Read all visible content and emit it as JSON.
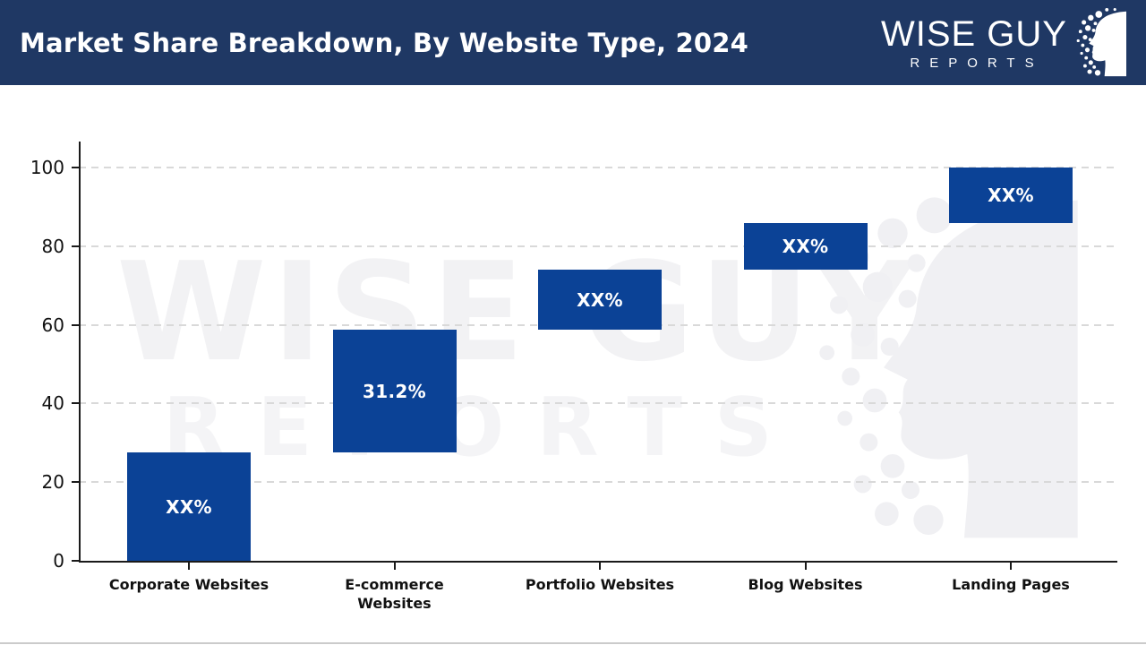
{
  "header": {
    "title": "Market Share Breakdown, By Website Type, 2024",
    "bg_color": "#1f3864",
    "logo": {
      "line1": "WISE GUY",
      "line2": "REPORTS"
    }
  },
  "watermark": {
    "line1": "WISE GUY",
    "line2": "REPORTS"
  },
  "chart_data": {
    "type": "bar",
    "subtype": "waterfall-floating-bars",
    "title": "Market Share Breakdown, By Website Type, 2024",
    "unit": "%",
    "categories": [
      "Corporate Websites",
      "E-commerce Websites",
      "Portfolio Websites",
      "Blog Websites",
      "Landing Pages"
    ],
    "tick_labels": [
      "Corporate Websites",
      "E-commerce\nWebsites",
      "Portfolio Websites",
      "Blog Websites",
      "Landing Pages"
    ],
    "segments": [
      {
        "category": "Corporate Websites",
        "start": 0,
        "end": 27.5,
        "label": "XX%"
      },
      {
        "category": "E-commerce Websites",
        "start": 27.5,
        "end": 58.7,
        "label": "31.2%"
      },
      {
        "category": "Portfolio Websites",
        "start": 58.7,
        "end": 74.0,
        "label": "XX%"
      },
      {
        "category": "Blog Websites",
        "start": 74.0,
        "end": 85.9,
        "label": "XX%"
      },
      {
        "category": "Landing Pages",
        "start": 85.9,
        "end": 100.0,
        "label": "XX%"
      }
    ],
    "yticks": [
      0,
      20,
      40,
      60,
      80,
      100
    ],
    "ylim": [
      0,
      106
    ],
    "xlabel": "",
    "ylabel": "",
    "bar_color": "#0b4296",
    "grid": {
      "axis": "y",
      "style": "dashed",
      "color": "#d9d9d9"
    },
    "legend": "none"
  }
}
